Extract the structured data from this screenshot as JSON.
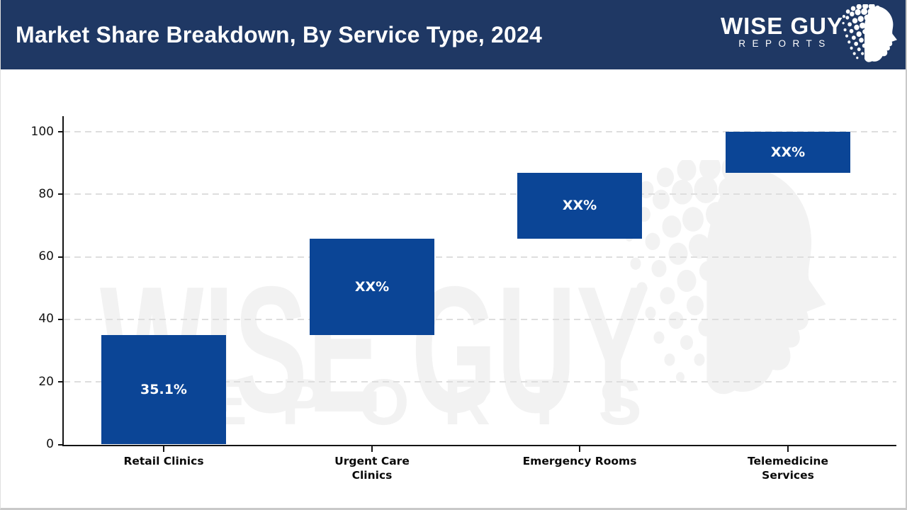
{
  "header": {
    "title": "Market Share Breakdown, By Service Type, 2024",
    "logo": {
      "wordmark": "WISE GUY",
      "subtext": "REPORTS"
    }
  },
  "watermark": {
    "wordmark": "WISE GUY",
    "subtext": "REPORTS"
  },
  "colors": {
    "header_bg": "#1f3864",
    "bar": "#0b4596",
    "bar_label": "#ffffff",
    "axis": "#141414",
    "gridline": "#dedede",
    "tick_label": "#141414",
    "watermark": "#f2f2f2",
    "page_border": "#c9c9c9"
  },
  "chart_data": {
    "type": "bar",
    "variant": "waterfall-breakdown",
    "title": "Market Share Breakdown, By Service Type, 2024",
    "categories": [
      "Retail Clinics",
      "Urgent Care\nClinics",
      "Emergency Rooms",
      "Telemedicine\nServices"
    ],
    "segments": [
      {
        "category": "Retail Clinics",
        "start": 0,
        "end": 35.1,
        "label": "35.1%"
      },
      {
        "category": "Urgent Care Clinics",
        "start": 35.1,
        "end": 65.9,
        "label": "XX%"
      },
      {
        "category": "Emergency Rooms",
        "start": 65.9,
        "end": 86.8,
        "label": "XX%"
      },
      {
        "category": "Telemedicine Services",
        "start": 86.8,
        "end": 100,
        "label": "XX%"
      }
    ],
    "xlabel": "",
    "ylabel": "",
    "ylim": [
      0,
      100
    ],
    "yticks": [
      0,
      20,
      40,
      60,
      80,
      100
    ],
    "grid": "dashed-horizontal",
    "legend": "none"
  }
}
